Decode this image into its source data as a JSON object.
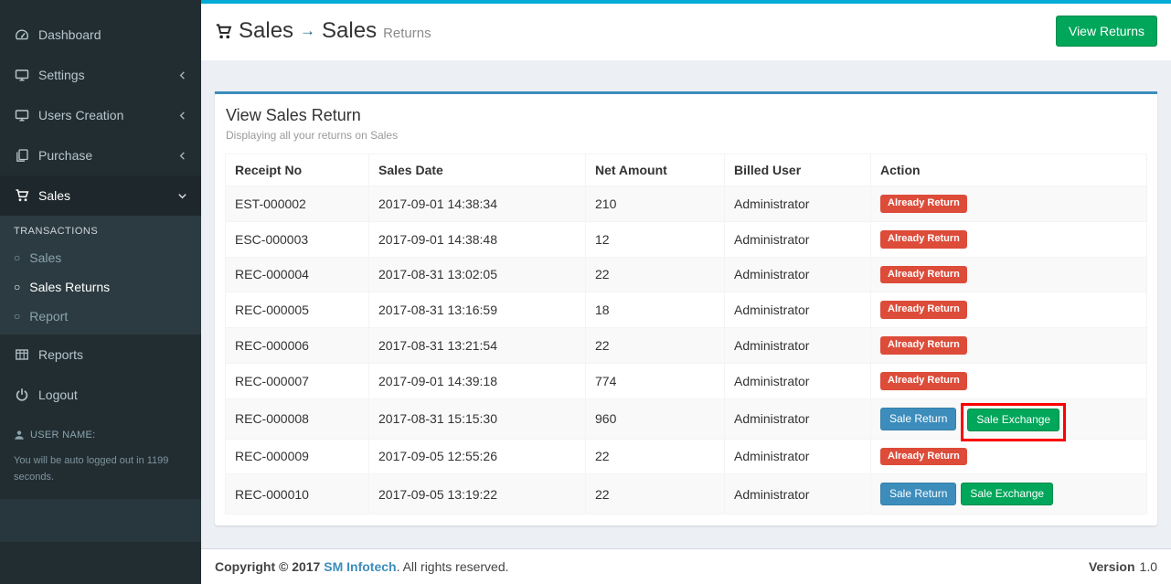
{
  "colors": {
    "top_strip": "#00acd6",
    "accent_blue": "#3c8dbc",
    "accent_blue_border": "#367fa9",
    "green": "#00a65a",
    "green_border": "#008d4c",
    "red_badge": "#dd4b39",
    "highlight_red": "#ff0000",
    "sidebar_bg": "#222d32",
    "sidebar_active_bg": "#1e282c",
    "submenu_bg": "#2c3b41"
  },
  "icons": {
    "circle": "○",
    "breadcrumb_arrow": "→"
  },
  "sidebar": {
    "items": [
      {
        "label": "Dashboard",
        "icon": "dashboard-icon"
      },
      {
        "label": "Settings",
        "icon": "display-icon",
        "chevron": "left"
      },
      {
        "label": "Users Creation",
        "icon": "display-icon",
        "chevron": "left"
      },
      {
        "label": "Purchase",
        "icon": "copy-icon",
        "chevron": "left"
      },
      {
        "label": "Sales",
        "icon": "cart-icon",
        "chevron": "down",
        "active": true
      }
    ],
    "transactions_header": "TRANSACTIONS",
    "submenu": [
      {
        "label": "Sales"
      },
      {
        "label": "Sales Returns",
        "active": true
      },
      {
        "label": "Report"
      }
    ],
    "bottom_items": [
      {
        "label": "Reports",
        "icon": "table-icon"
      },
      {
        "label": "Logout",
        "icon": "power-icon"
      }
    ],
    "user_label": "USER NAME:",
    "auto_logout_text": "You will be auto logged out in 1199 seconds."
  },
  "header": {
    "title_primary": "Sales",
    "title_secondary": "Sales",
    "title_sub": "Returns",
    "view_returns_label": "View Returns"
  },
  "panel": {
    "title": "View Sales Return",
    "subtitle": "Displaying all your returns on Sales",
    "table": {
      "columns": [
        "Receipt No",
        "Sales Date",
        "Net Amount",
        "Billed User",
        "Action"
      ],
      "action_labels": {
        "already-return": "Already Return",
        "sale-return": "Sale Return",
        "sale-exchange": "Sale Exchange"
      },
      "rows": [
        {
          "receipt_no": "EST-000002",
          "sales_date": "2017-09-01 14:38:34",
          "net_amount": "210",
          "billed_user": "Administrator",
          "actions": [
            {
              "type": "already-return"
            }
          ]
        },
        {
          "receipt_no": "ESC-000003",
          "sales_date": "2017-09-01 14:38:48",
          "net_amount": "12",
          "billed_user": "Administrator",
          "actions": [
            {
              "type": "already-return"
            }
          ]
        },
        {
          "receipt_no": "REC-000004",
          "sales_date": "2017-08-31 13:02:05",
          "net_amount": "22",
          "billed_user": "Administrator",
          "actions": [
            {
              "type": "already-return"
            }
          ]
        },
        {
          "receipt_no": "REC-000005",
          "sales_date": "2017-08-31 13:16:59",
          "net_amount": "18",
          "billed_user": "Administrator",
          "actions": [
            {
              "type": "already-return"
            }
          ]
        },
        {
          "receipt_no": "REC-000006",
          "sales_date": "2017-08-31 13:21:54",
          "net_amount": "22",
          "billed_user": "Administrator",
          "actions": [
            {
              "type": "already-return"
            }
          ]
        },
        {
          "receipt_no": "REC-000007",
          "sales_date": "2017-09-01 14:39:18",
          "net_amount": "774",
          "billed_user": "Administrator",
          "actions": [
            {
              "type": "already-return"
            }
          ]
        },
        {
          "receipt_no": "REC-000008",
          "sales_date": "2017-08-31 15:15:30",
          "net_amount": "960",
          "billed_user": "Administrator",
          "actions": [
            {
              "type": "sale-return"
            },
            {
              "type": "sale-exchange",
              "highlighted": true
            }
          ]
        },
        {
          "receipt_no": "REC-000009",
          "sales_date": "2017-09-05 12:55:26",
          "net_amount": "22",
          "billed_user": "Administrator",
          "actions": [
            {
              "type": "already-return"
            }
          ]
        },
        {
          "receipt_no": "REC-000010",
          "sales_date": "2017-09-05 13:19:22",
          "net_amount": "22",
          "billed_user": "Administrator",
          "actions": [
            {
              "type": "sale-return"
            },
            {
              "type": "sale-exchange"
            }
          ]
        }
      ]
    }
  },
  "footer": {
    "copyright_prefix": "Copyright © 2017 ",
    "company": "SM Infotech",
    "copyright_suffix": ". All rights reserved.",
    "version_label": "Version",
    "version_value": "1.0"
  }
}
